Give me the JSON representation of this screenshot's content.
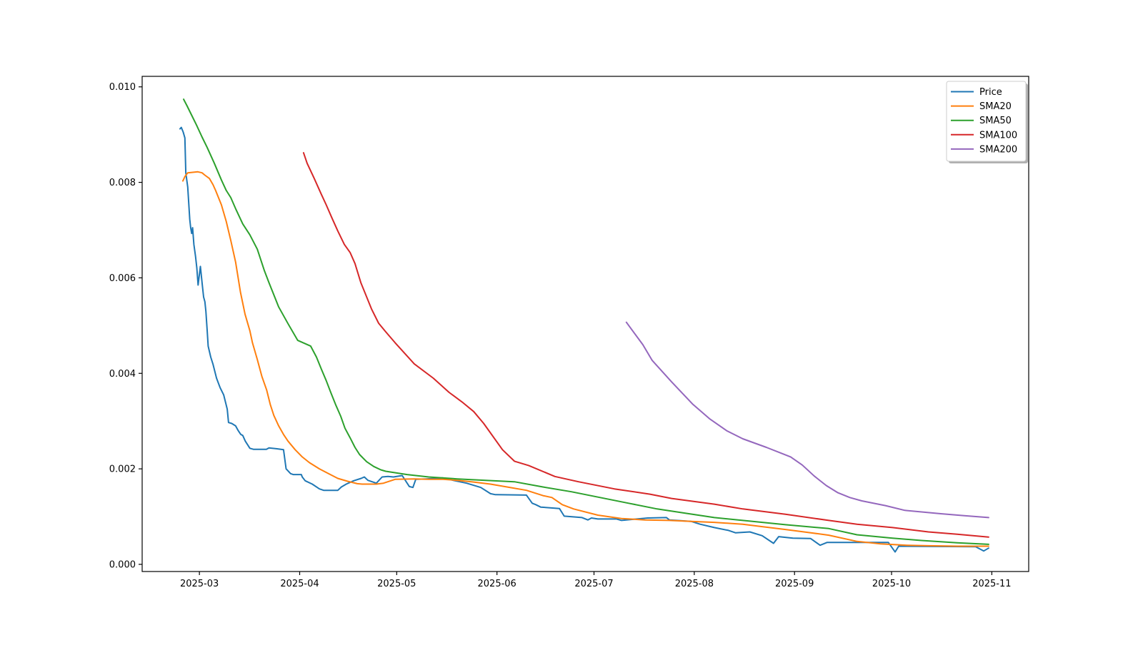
{
  "chart_data": {
    "type": "line",
    "title": "",
    "xlabel": "",
    "ylabel": "",
    "grid": false,
    "background": "#ffffff",
    "x_axis": {
      "start_date": "2025-02-23",
      "unit": "days_since_start",
      "range_days": [
        -11.7,
        262.4
      ],
      "tick_days": [
        6,
        37,
        67,
        98,
        128,
        159,
        190,
        220,
        251
      ],
      "tick_labels": [
        "2025-03",
        "2025-04",
        "2025-05",
        "2025-06",
        "2025-07",
        "2025-08",
        "2025-09",
        "2025-10",
        "2025-11"
      ]
    },
    "y_axis": {
      "range": [
        -0.00015,
        0.01022
      ],
      "ticks": [
        0,
        0.002,
        0.004,
        0.006,
        0.008,
        0.01
      ],
      "tick_labels": [
        "0.000",
        "0.002",
        "0.004",
        "0.006",
        "0.008",
        "0.010"
      ]
    },
    "legend": {
      "position": "upper right",
      "entries": [
        {
          "label": "Price",
          "color": "#1f77b4"
        },
        {
          "label": "SMA20",
          "color": "#ff7f0e"
        },
        {
          "label": "SMA50",
          "color": "#2ca02c"
        },
        {
          "label": "SMA100",
          "color": "#d62728"
        },
        {
          "label": "SMA200",
          "color": "#9467bd"
        }
      ]
    },
    "series": [
      {
        "name": "Price",
        "color": "#1f77b4",
        "points": [
          [
            0,
            0.00912
          ],
          [
            0.4,
            0.00915
          ],
          [
            1,
            0.00905
          ],
          [
            1.5,
            0.00893
          ],
          [
            1.8,
            0.0082
          ],
          [
            2.4,
            0.0079
          ],
          [
            3,
            0.00723
          ],
          [
            3.3,
            0.00705
          ],
          [
            3.6,
            0.00693
          ],
          [
            3.9,
            0.00705
          ],
          [
            4.3,
            0.0067
          ],
          [
            4.8,
            0.00645
          ],
          [
            5.2,
            0.00621
          ],
          [
            5.6,
            0.00585
          ],
          [
            6.3,
            0.00624
          ],
          [
            6.9,
            0.00585
          ],
          [
            7.3,
            0.0056
          ],
          [
            7.7,
            0.0055
          ],
          [
            8,
            0.0053
          ],
          [
            8.4,
            0.0049
          ],
          [
            8.7,
            0.00457
          ],
          [
            9.5,
            0.00434
          ],
          [
            10.2,
            0.00419
          ],
          [
            11.3,
            0.0039
          ],
          [
            12.4,
            0.0037
          ],
          [
            13.5,
            0.00355
          ],
          [
            14.6,
            0.00325
          ],
          [
            15,
            0.00297
          ],
          [
            16,
            0.00295
          ],
          [
            17.2,
            0.0029
          ],
          [
            18,
            0.0028
          ],
          [
            18.8,
            0.00272
          ],
          [
            19.4,
            0.0027
          ],
          [
            20.2,
            0.00258
          ],
          [
            21.6,
            0.00243
          ],
          [
            22.7,
            0.00241
          ],
          [
            26.7,
            0.00241
          ],
          [
            27.5,
            0.00244
          ],
          [
            30,
            0.00242
          ],
          [
            32,
            0.0024
          ],
          [
            32.8,
            0.002
          ],
          [
            34.2,
            0.0019
          ],
          [
            35,
            0.00188
          ],
          [
            37.5,
            0.00188
          ],
          [
            37.8,
            0.00183
          ],
          [
            38.7,
            0.00175
          ],
          [
            40.9,
            0.00168
          ],
          [
            43.1,
            0.00158
          ],
          [
            44.4,
            0.00155
          ],
          [
            48.8,
            0.00155
          ],
          [
            49.9,
            0.00162
          ],
          [
            51.4,
            0.00168
          ],
          [
            53.7,
            0.00175
          ],
          [
            56,
            0.0018
          ],
          [
            57,
            0.00183
          ],
          [
            58.1,
            0.00176
          ],
          [
            60.7,
            0.0017
          ],
          [
            62.5,
            0.00183
          ],
          [
            64.3,
            0.00184
          ],
          [
            66,
            0.00183
          ],
          [
            68.7,
            0.00186
          ],
          [
            70.9,
            0.00163
          ],
          [
            72,
            0.00161
          ],
          [
            72.9,
            0.00178
          ],
          [
            76.2,
            0.00179
          ],
          [
            81.3,
            0.00181
          ],
          [
            85,
            0.00175
          ],
          [
            88.6,
            0.0017
          ],
          [
            93,
            0.00161
          ],
          [
            96,
            0.00148
          ],
          [
            97.5,
            0.00146
          ],
          [
            107.1,
            0.00145
          ],
          [
            108.9,
            0.00128
          ],
          [
            110,
            0.00125
          ],
          [
            111.5,
            0.0012
          ],
          [
            117.3,
            0.00117
          ],
          [
            118.8,
            0.00101
          ],
          [
            124.3,
            0.00098
          ],
          [
            126.1,
            0.00093
          ],
          [
            127.2,
            0.00097
          ],
          [
            129.2,
            0.00095
          ],
          [
            135,
            0.00095
          ],
          [
            136.5,
            0.00092
          ],
          [
            144.6,
            0.00097
          ],
          [
            150.4,
            0.00098
          ],
          [
            151.3,
            0.00093
          ],
          [
            153.5,
            0.00092
          ],
          [
            158,
            0.0009
          ],
          [
            160.8,
            0.00084
          ],
          [
            165.2,
            0.00077
          ],
          [
            169.6,
            0.00071
          ],
          [
            171.8,
            0.00066
          ],
          [
            176.2,
            0.00068
          ],
          [
            180,
            0.0006
          ],
          [
            183.5,
            0.00044
          ],
          [
            185.1,
            0.00058
          ],
          [
            189.5,
            0.00055
          ],
          [
            195,
            0.00054
          ],
          [
            197.9,
            0.0004
          ],
          [
            200.1,
            0.00046
          ],
          [
            219,
            0.00046
          ],
          [
            221.1,
            0.00026
          ],
          [
            222.2,
            0.00038
          ],
          [
            246,
            0.00037
          ],
          [
            248.5,
            0.00028
          ],
          [
            250,
            0.00034
          ]
        ]
      },
      {
        "name": "SMA20",
        "color": "#ff7f0e",
        "points": [
          [
            0.9,
            0.00803
          ],
          [
            1.5,
            0.00812
          ],
          [
            2.4,
            0.0082
          ],
          [
            5.5,
            0.00822
          ],
          [
            6.8,
            0.0082
          ],
          [
            7.7,
            0.00815
          ],
          [
            9.1,
            0.00808
          ],
          [
            10.2,
            0.00795
          ],
          [
            11,
            0.00783
          ],
          [
            12.8,
            0.00753
          ],
          [
            14.3,
            0.00718
          ],
          [
            15.7,
            0.00678
          ],
          [
            17.2,
            0.00633
          ],
          [
            18.7,
            0.0057
          ],
          [
            20.1,
            0.00524
          ],
          [
            21.6,
            0.00489
          ],
          [
            22.4,
            0.00464
          ],
          [
            23.9,
            0.00429
          ],
          [
            25.3,
            0.00394
          ],
          [
            26.8,
            0.00365
          ],
          [
            27.9,
            0.00335
          ],
          [
            29,
            0.00312
          ],
          [
            30.5,
            0.0029
          ],
          [
            32,
            0.00272
          ],
          [
            33.4,
            0.00258
          ],
          [
            35.6,
            0.0024
          ],
          [
            37.8,
            0.00225
          ],
          [
            40,
            0.00213
          ],
          [
            43.1,
            0.002
          ],
          [
            45.9,
            0.0019
          ],
          [
            48.8,
            0.0018
          ],
          [
            51.8,
            0.00174
          ],
          [
            54.8,
            0.00169
          ],
          [
            56.3,
            0.00168
          ],
          [
            60.7,
            0.00168
          ],
          [
            62.9,
            0.0017
          ],
          [
            66.5,
            0.00178
          ],
          [
            72.4,
            0.00179
          ],
          [
            76.9,
            0.00178
          ],
          [
            81.3,
            0.00178
          ],
          [
            85.7,
            0.00176
          ],
          [
            90.1,
            0.00173
          ],
          [
            96,
            0.00168
          ],
          [
            101.1,
            0.00162
          ],
          [
            107.1,
            0.00155
          ],
          [
            112.2,
            0.00144
          ],
          [
            115,
            0.0014
          ],
          [
            118.2,
            0.00125
          ],
          [
            121.7,
            0.00116
          ],
          [
            129.2,
            0.00103
          ],
          [
            136.5,
            0.00096
          ],
          [
            143.8,
            0.00093
          ],
          [
            151.3,
            0.00092
          ],
          [
            158,
            0.0009
          ],
          [
            165.2,
            0.00088
          ],
          [
            174,
            0.00084
          ],
          [
            180,
            0.00079
          ],
          [
            187.2,
            0.00073
          ],
          [
            194,
            0.00067
          ],
          [
            200.6,
            0.00061
          ],
          [
            209.3,
            0.00048
          ],
          [
            216.6,
            0.00043
          ],
          [
            224.8,
            0.0004
          ],
          [
            231.4,
            0.00039
          ],
          [
            240.3,
            0.00038
          ],
          [
            250,
            0.00038
          ]
        ]
      },
      {
        "name": "SMA50",
        "color": "#2ca02c",
        "points": [
          [
            1.1,
            0.00974
          ],
          [
            2.2,
            0.0096
          ],
          [
            3.5,
            0.00942
          ],
          [
            5.1,
            0.0092
          ],
          [
            6.8,
            0.00895
          ],
          [
            8.4,
            0.00873
          ],
          [
            10.6,
            0.0084
          ],
          [
            12.8,
            0.00805
          ],
          [
            14.3,
            0.00783
          ],
          [
            15.7,
            0.00768
          ],
          [
            17.2,
            0.00745
          ],
          [
            19.4,
            0.00713
          ],
          [
            21.6,
            0.0069
          ],
          [
            23.9,
            0.0066
          ],
          [
            26.1,
            0.00615
          ],
          [
            27.5,
            0.0059
          ],
          [
            30.5,
            0.00539
          ],
          [
            33.4,
            0.00504
          ],
          [
            36.4,
            0.00469
          ],
          [
            40.4,
            0.00457
          ],
          [
            42.2,
            0.00434
          ],
          [
            43.7,
            0.00409
          ],
          [
            45.2,
            0.00385
          ],
          [
            46.6,
            0.0036
          ],
          [
            48.1,
            0.00335
          ],
          [
            49.7,
            0.0031
          ],
          [
            51,
            0.00285
          ],
          [
            52.6,
            0.00265
          ],
          [
            54.1,
            0.00245
          ],
          [
            55.5,
            0.0023
          ],
          [
            57.7,
            0.00215
          ],
          [
            59.9,
            0.00205
          ],
          [
            62.1,
            0.00198
          ],
          [
            63.6,
            0.00195
          ],
          [
            70.2,
            0.00188
          ],
          [
            76.9,
            0.00183
          ],
          [
            85.7,
            0.00179
          ],
          [
            94.5,
            0.00176
          ],
          [
            103.4,
            0.00173
          ],
          [
            112.2,
            0.00162
          ],
          [
            121,
            0.00152
          ],
          [
            129.9,
            0.0014
          ],
          [
            138.7,
            0.00128
          ],
          [
            147.5,
            0.00116
          ],
          [
            156.4,
            0.00107
          ],
          [
            165.2,
            0.00098
          ],
          [
            174,
            0.00092
          ],
          [
            187.2,
            0.00083
          ],
          [
            200.6,
            0.00075
          ],
          [
            209.3,
            0.00062
          ],
          [
            220.3,
            0.00055
          ],
          [
            229.2,
            0.0005
          ],
          [
            240.3,
            0.00045
          ],
          [
            250,
            0.00042
          ]
        ]
      },
      {
        "name": "SMA100",
        "color": "#d62728",
        "points": [
          [
            38.2,
            0.00862
          ],
          [
            39.3,
            0.0084
          ],
          [
            41.5,
            0.00808
          ],
          [
            43.7,
            0.00775
          ],
          [
            45.2,
            0.00753
          ],
          [
            47,
            0.00725
          ],
          [
            48.8,
            0.00698
          ],
          [
            50.8,
            0.0067
          ],
          [
            52.6,
            0.00653
          ],
          [
            54.1,
            0.0063
          ],
          [
            55.9,
            0.0059
          ],
          [
            59.2,
            0.00535
          ],
          [
            61.4,
            0.00505
          ],
          [
            63.6,
            0.00487
          ],
          [
            66.5,
            0.00464
          ],
          [
            72.4,
            0.0042
          ],
          [
            78.3,
            0.0039
          ],
          [
            83.2,
            0.0036
          ],
          [
            87.2,
            0.0034
          ],
          [
            90.8,
            0.0032
          ],
          [
            93.9,
            0.00295
          ],
          [
            99.7,
            0.0024
          ],
          [
            103.4,
            0.00216
          ],
          [
            107.8,
            0.00207
          ],
          [
            115.9,
            0.00184
          ],
          [
            123.2,
            0.00173
          ],
          [
            134.3,
            0.00158
          ],
          [
            145.3,
            0.00147
          ],
          [
            152,
            0.00138
          ],
          [
            165.2,
            0.00126
          ],
          [
            174,
            0.00116
          ],
          [
            187.2,
            0.00105
          ],
          [
            200.6,
            0.00092
          ],
          [
            209.3,
            0.00084
          ],
          [
            220.3,
            0.00077
          ],
          [
            231.4,
            0.00068
          ],
          [
            240.3,
            0.00063
          ],
          [
            250,
            0.00057
          ]
        ]
      },
      {
        "name": "SMA200",
        "color": "#9467bd",
        "points": [
          [
            138,
            0.00507
          ],
          [
            143.1,
            0.0046
          ],
          [
            146,
            0.00427
          ],
          [
            152,
            0.00382
          ],
          [
            158.6,
            0.00335
          ],
          [
            163.7,
            0.00305
          ],
          [
            169,
            0.0028
          ],
          [
            174,
            0.00263
          ],
          [
            181.3,
            0.00245
          ],
          [
            188.8,
            0.00225
          ],
          [
            192.4,
            0.00208
          ],
          [
            196.1,
            0.00185
          ],
          [
            199.8,
            0.00165
          ],
          [
            203.4,
            0.0015
          ],
          [
            207.1,
            0.0014
          ],
          [
            210.8,
            0.00133
          ],
          [
            215.2,
            0.00127
          ],
          [
            218.1,
            0.00123
          ],
          [
            224.1,
            0.00113
          ],
          [
            235.2,
            0.00106
          ],
          [
            242.5,
            0.00102
          ],
          [
            250,
            0.00098
          ]
        ]
      }
    ]
  }
}
